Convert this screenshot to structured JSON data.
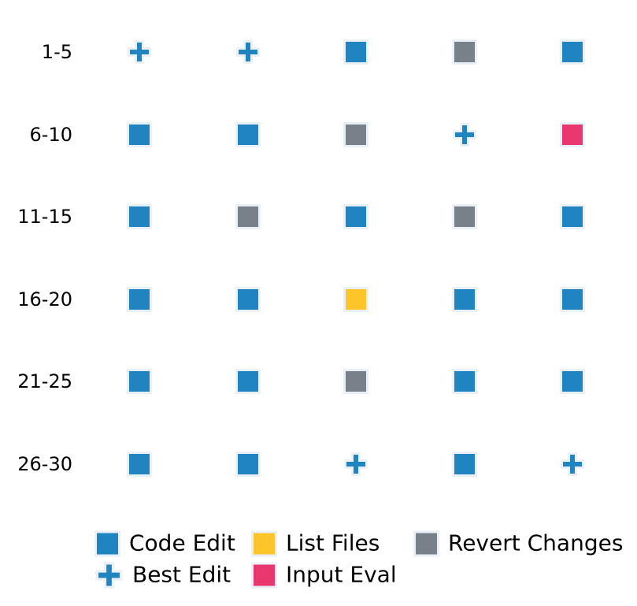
{
  "figure": {
    "background": "#ffffff",
    "text_color": "#000000"
  },
  "chart_data": {
    "type": "scatter",
    "title": "",
    "xlabel": "",
    "ylabel": "",
    "grid_lines": false,
    "rows": [
      "1-5",
      "6-10",
      "11-15",
      "16-20",
      "21-25",
      "26-30"
    ],
    "columns_per_row": 5,
    "grid": [
      [
        "Best Edit",
        "Best Edit",
        "Code Edit",
        "Revert Changes",
        "Code Edit"
      ],
      [
        "Code Edit",
        "Code Edit",
        "Revert Changes",
        "Best Edit",
        "Input Eval"
      ],
      [
        "Code Edit",
        "Revert Changes",
        "Code Edit",
        "Revert Changes",
        "Code Edit"
      ],
      [
        "Code Edit",
        "Code Edit",
        "List Files",
        "Code Edit",
        "Code Edit"
      ],
      [
        "Code Edit",
        "Code Edit",
        "Revert Changes",
        "Code Edit",
        "Code Edit"
      ],
      [
        "Code Edit",
        "Code Edit",
        "Best Edit",
        "Code Edit",
        "Best Edit"
      ]
    ],
    "marker_edge_color": "#e9f0f7",
    "legend": {
      "position": "bottom",
      "columns": 3,
      "items": [
        {
          "label": "Code Edit",
          "marker": "square",
          "color": "#1f84bf"
        },
        {
          "label": "List Files",
          "marker": "square",
          "color": "#fec52b"
        },
        {
          "label": "Revert Changes",
          "marker": "square",
          "color": "#78808a"
        },
        {
          "label": "Best Edit",
          "marker": "plus",
          "color": "#1f84bf"
        },
        {
          "label": "Input Eval",
          "marker": "square",
          "color": "#e9366f"
        }
      ]
    }
  }
}
